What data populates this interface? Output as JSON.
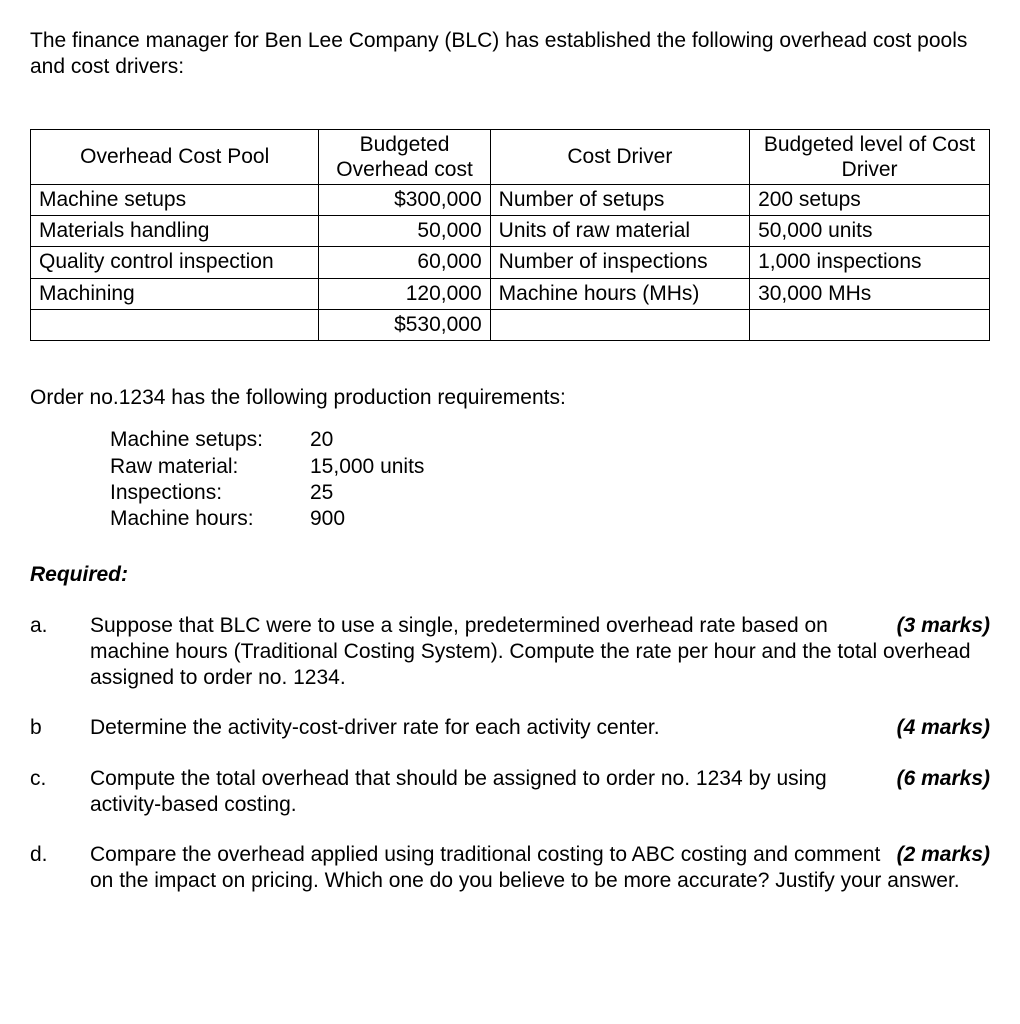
{
  "intro": "The finance manager for Ben Lee Company (BLC) has established the following overhead cost pools and cost drivers:",
  "table": {
    "headers": {
      "pool": "Overhead Cost Pool",
      "cost": "Budgeted Overhead cost",
      "driver": "Cost Driver",
      "level": "Budgeted level of Cost Driver"
    },
    "rows": [
      {
        "pool": "Machine setups",
        "cost": "$300,000",
        "driver": "Number of setups",
        "level": "200 setups"
      },
      {
        "pool": "Materials handling",
        "cost": "50,000",
        "driver": "Units of raw material",
        "level": "50,000 units"
      },
      {
        "pool": "Quality control inspection",
        "cost": "60,000",
        "driver": "Number of inspections",
        "level": "1,000 inspections"
      },
      {
        "pool": "Machining",
        "cost": "120,000",
        "driver": "Machine hours (MHs)",
        "level": "30,000 MHs"
      }
    ],
    "total_cost": "$530,000"
  },
  "order_intro": "Order no.1234 has the following production requirements:",
  "order": [
    {
      "label": "Machine setups:",
      "value": "20"
    },
    {
      "label": "Raw material:",
      "value": "15,000 units"
    },
    {
      "label": "Inspections:",
      "value": "25"
    },
    {
      "label": "Machine hours:",
      "value": "900"
    }
  ],
  "required_label": "Required",
  "questions": {
    "a": {
      "letter": "a.",
      "text": "Suppose that BLC were to use a single, predetermined overhead rate based on machine hours (Traditional Costing System). Compute the rate per hour and the total overhead assigned to order no. 1234.",
      "marks": "(3 marks)"
    },
    "b": {
      "letter": "b",
      "text": "Determine the activity-cost-driver rate for each activity center.",
      "marks": "(4 marks)"
    },
    "c": {
      "letter": "c.",
      "text": "Compute the total overhead that should be assigned to order no. 1234 by using activity-based costing.",
      "marks": "(6 marks)"
    },
    "d": {
      "letter": "d.",
      "text": "Compare the overhead applied using traditional costing to ABC costing and comment on the impact on pricing. Which one do you believe to be more accurate? Justify your answer.",
      "marks": "(2 marks)"
    }
  }
}
